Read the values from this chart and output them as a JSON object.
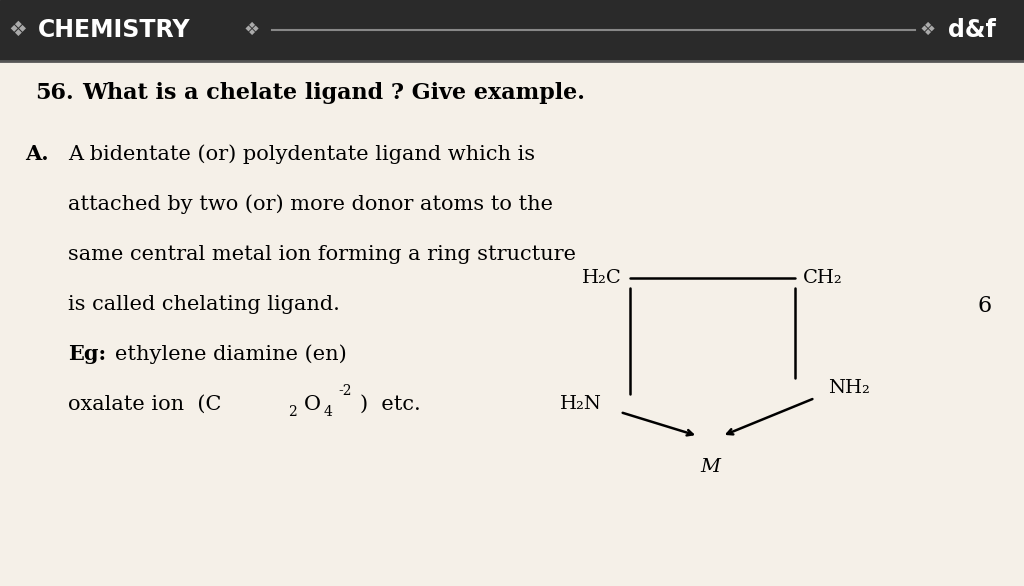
{
  "bg_color": "#f5f0e8",
  "header_bg": "#2a2a2a",
  "header_text": "CHEMISTRY",
  "header_text_color": "#ffffff",
  "header_right_text": "d&f",
  "question_number": "56.",
  "question_text": "What is a chelate ligand ? Give example.",
  "answer_label": "A.",
  "answer_lines": [
    "A bidentate (or) polydentate ligand which is",
    "attached by two (or) more donor atoms to the",
    "same central metal ion forming a ring structure",
    "is called chelating ligand."
  ],
  "eg_text_bold": "Eg:",
  "eg_text_normal": "ethylene diamine (en)",
  "oxalate_prefix": "oxalate ion  (C",
  "oxalate_sub2": "2",
  "oxalate_O": "O",
  "oxalate_sub4": "4",
  "oxalate_sup": "-2",
  "oxalate_suffix": ")  etc.",
  "diagram": {
    "H2C": "H₂C",
    "CH2": "CH₂",
    "H2N": "H₂N",
    "NH2": "NH₂",
    "M": "M"
  },
  "snowflake_color": "#aaaaaa",
  "line_color": "#000000",
  "arrow_color": "#000000"
}
